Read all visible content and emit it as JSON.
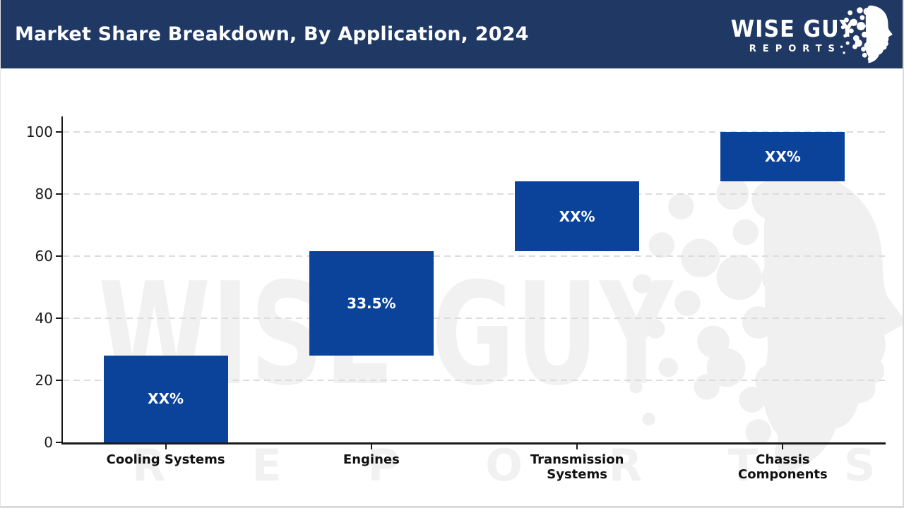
{
  "header": {
    "title": "Market Share Breakdown, By Application, 2024",
    "logo": {
      "line1": "WISE GUY",
      "line2": "REPORTS"
    }
  },
  "watermark": {
    "line1": "WISE GUY",
    "line2": "R E P O R T S"
  },
  "chart_data": {
    "type": "bar",
    "variant": "waterfall",
    "title": "Market Share Breakdown, By Application, 2024",
    "categories": [
      "Cooling Systems",
      "Engines",
      "Transmission Systems",
      "Chassis Components"
    ],
    "series": [
      {
        "name": "Market share (%)",
        "segments": [
          {
            "category": "Cooling Systems",
            "start": 0,
            "end": 28,
            "label": "XX%"
          },
          {
            "category": "Engines",
            "start": 28,
            "end": 61.5,
            "label": "33.5%"
          },
          {
            "category": "Transmission Systems",
            "start": 61.5,
            "end": 84,
            "label": "XX%"
          },
          {
            "category": "Chassis Components",
            "start": 84,
            "end": 100,
            "label": "XX%"
          }
        ]
      }
    ],
    "xlabel": "",
    "ylabel": "",
    "yticks": [
      0,
      20,
      40,
      60,
      80,
      100
    ],
    "ylim": [
      0,
      105
    ],
    "grid": "horizontal-dashed",
    "legend": "none"
  },
  "colors": {
    "header_bg": "#1f3864",
    "bar": "#0a4399",
    "axis": "#1a1a1a",
    "grid": "#dcdcdc",
    "watermark": "#f1f1f1"
  }
}
